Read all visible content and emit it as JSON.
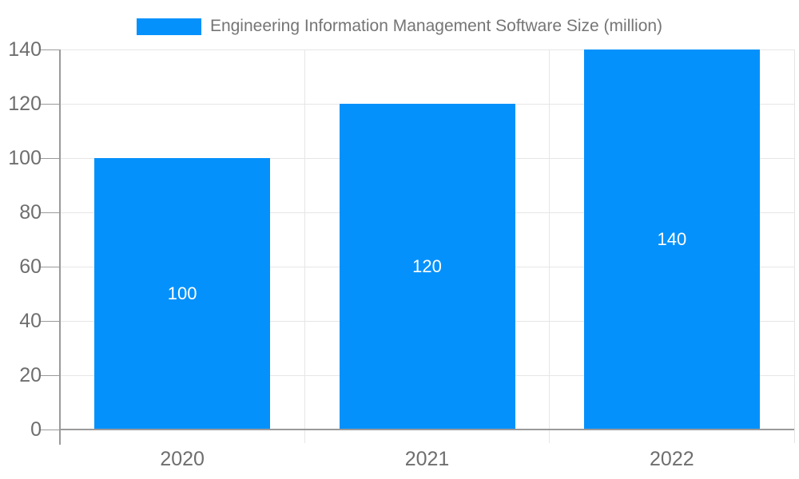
{
  "chart_data": {
    "type": "bar",
    "title": "Engineering Information Management Software Size (million)",
    "legend": {
      "position": "top",
      "entries": [
        "Engineering Information Management Software Size (million)"
      ]
    },
    "categories": [
      "2020",
      "2021",
      "2022"
    ],
    "series": [
      {
        "name": "Engineering Information Management Software Size (million)",
        "values": [
          100,
          120,
          140
        ]
      }
    ],
    "data_labels": [
      "100",
      "120",
      "140"
    ],
    "xlabel": "",
    "ylabel": "",
    "ylim": [
      0,
      140
    ],
    "yticks": [
      0,
      20,
      40,
      60,
      80,
      100,
      120,
      140
    ],
    "ytick_labels": [
      "0",
      "20",
      "40",
      "60",
      "80",
      "100",
      "120",
      "140"
    ],
    "grid": true,
    "colors": {
      "bar": "#0591fb",
      "axis": "#9a9a9a",
      "gridline": "#e6e6e6",
      "axis_text": "#6e6e6e",
      "legend_text": "#757575",
      "data_label": "#ffffff",
      "background": "#ffffff"
    }
  }
}
